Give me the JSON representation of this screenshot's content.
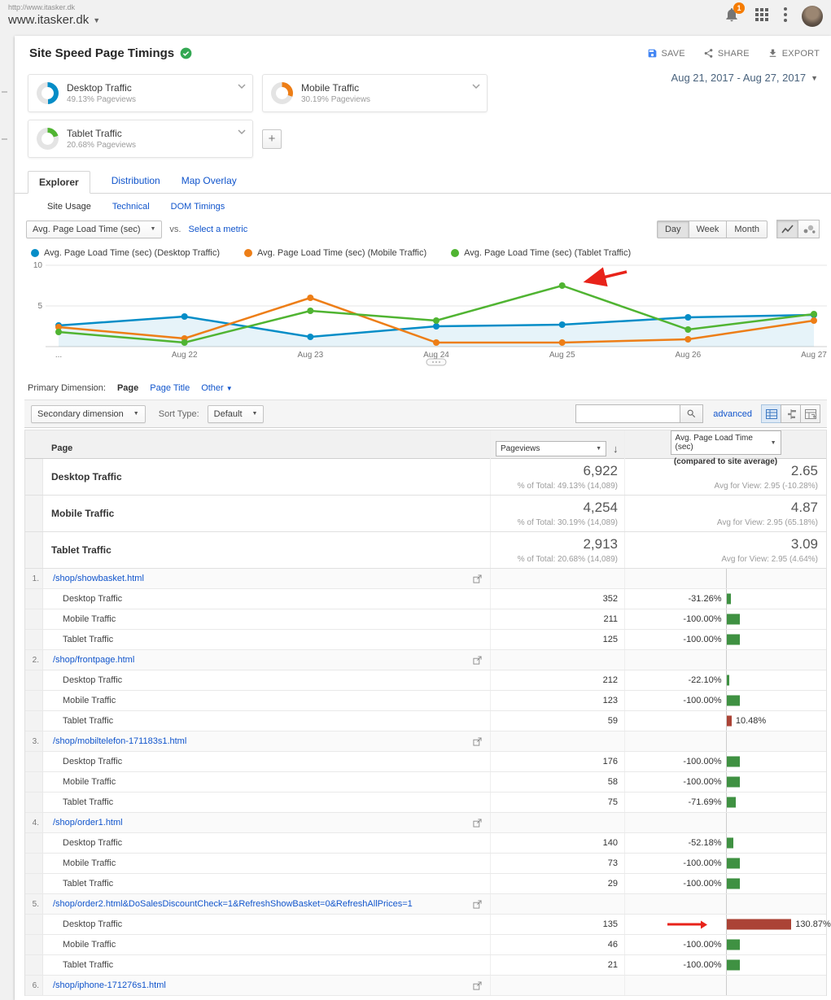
{
  "topbar": {
    "url": "http://www.itasker.dk",
    "account": "www.itasker.dk",
    "notification_count": "1"
  },
  "header": {
    "title": "Site Speed Page Timings",
    "save": "SAVE",
    "share": "SHARE",
    "export": "EXPORT"
  },
  "segments": [
    {
      "name": "Desktop Traffic",
      "detail": "49.13% Pageviews",
      "pct": 49.13,
      "color": "#058dc7"
    },
    {
      "name": "Mobile Traffic",
      "detail": "30.19% Pageviews",
      "pct": 30.19,
      "color": "#ed7e17"
    },
    {
      "name": "Tablet Traffic",
      "detail": "20.68% Pageviews",
      "pct": 20.68,
      "color": "#50b432"
    }
  ],
  "date_range": "Aug 21, 2017 - Aug 27, 2017",
  "tabs": {
    "active": "Explorer",
    "links": [
      "Distribution",
      "Map Overlay"
    ]
  },
  "subtabs": {
    "active": "Site Usage",
    "links": [
      "Technical",
      "DOM Timings"
    ]
  },
  "metric_bar": {
    "metric": "Avg. Page Load Time (sec)",
    "vs": "vs.",
    "select_metric": "Select a metric",
    "granularity": [
      "Day",
      "Week",
      "Month"
    ],
    "active_granularity": "Day"
  },
  "chart_data": {
    "type": "line",
    "x": [
      "...",
      "Aug 22",
      "Aug 23",
      "Aug 24",
      "Aug 25",
      "Aug 26",
      "Aug 27"
    ],
    "series": [
      {
        "name": "Avg. Page Load Time (sec) (Desktop Traffic)",
        "color": "#058dc7",
        "area": true,
        "values": [
          2.6,
          3.7,
          1.2,
          2.5,
          2.7,
          3.6,
          3.9
        ]
      },
      {
        "name": "Avg. Page Load Time (sec) (Mobile Traffic)",
        "color": "#ed7e17",
        "values": [
          2.4,
          1.0,
          6.0,
          0.5,
          0.5,
          0.9,
          3.2
        ]
      },
      {
        "name": "Avg. Page Load Time (sec) (Tablet Traffic)",
        "color": "#50b432",
        "values": [
          1.8,
          0.5,
          4.4,
          3.2,
          7.5,
          2.1,
          4.0
        ]
      }
    ],
    "ylim": [
      0,
      10
    ],
    "yticks": [
      5,
      10
    ],
    "legend_position": "top",
    "grid": true,
    "annotations": [
      {
        "type": "red-arrow",
        "note": "hand-drawn arrow pointing at Tablet Traffic peak on Aug 25"
      }
    ]
  },
  "dimension_bar": {
    "label": "Primary Dimension:",
    "active": "Page",
    "links": [
      "Page Title",
      "Other"
    ]
  },
  "table_toolbar": {
    "secondary_dimension": "Secondary dimension",
    "sort_type_label": "Sort Type:",
    "sort_type_value": "Default",
    "search_value": "",
    "advanced": "advanced"
  },
  "table": {
    "col_page": "Page",
    "col_pageviews": "Pageviews",
    "col_metric": "Avg. Page Load Time (sec)",
    "col_metric_note": "(compared to site average)",
    "summary": [
      {
        "label": "Desktop Traffic",
        "pageviews": "6,922",
        "pageviews_sub": "% of Total: 49.13% (14,089)",
        "metric": "2.65",
        "metric_sub": "Avg for View: 2.95 (-10.28%)"
      },
      {
        "label": "Mobile Traffic",
        "pageviews": "4,254",
        "pageviews_sub": "% of Total: 30.19% (14,089)",
        "metric": "4.87",
        "metric_sub": "Avg for View: 2.95 (65.18%)"
      },
      {
        "label": "Tablet Traffic",
        "pageviews": "2,913",
        "pageviews_sub": "% of Total: 20.68% (14,089)",
        "metric": "3.09",
        "metric_sub": "Avg for View: 2.95 (4.64%)"
      }
    ],
    "rows": [
      {
        "index": "1.",
        "page": "/shop/showbasket.html",
        "segments": [
          {
            "label": "Desktop Traffic",
            "pageviews": "352",
            "delta": "-31.26%"
          },
          {
            "label": "Mobile Traffic",
            "pageviews": "211",
            "delta": "-100.00%"
          },
          {
            "label": "Tablet Traffic",
            "pageviews": "125",
            "delta": "-100.00%"
          }
        ]
      },
      {
        "index": "2.",
        "page": "/shop/frontpage.html",
        "segments": [
          {
            "label": "Desktop Traffic",
            "pageviews": "212",
            "delta": "-22.10%"
          },
          {
            "label": "Mobile Traffic",
            "pageviews": "123",
            "delta": "-100.00%"
          },
          {
            "label": "Tablet Traffic",
            "pageviews": "59",
            "delta": "10.48%"
          }
        ]
      },
      {
        "index": "3.",
        "page": "/shop/mobiltelefon-171183s1.html",
        "segments": [
          {
            "label": "Desktop Traffic",
            "pageviews": "176",
            "delta": "-100.00%"
          },
          {
            "label": "Mobile Traffic",
            "pageviews": "58",
            "delta": "-100.00%"
          },
          {
            "label": "Tablet Traffic",
            "pageviews": "75",
            "delta": "-71.69%"
          }
        ]
      },
      {
        "index": "4.",
        "page": "/shop/order1.html",
        "segments": [
          {
            "label": "Desktop Traffic",
            "pageviews": "140",
            "delta": "-52.18%"
          },
          {
            "label": "Mobile Traffic",
            "pageviews": "73",
            "delta": "-100.00%"
          },
          {
            "label": "Tablet Traffic",
            "pageviews": "29",
            "delta": "-100.00%"
          }
        ]
      },
      {
        "index": "5.",
        "page": "/shop/order2.html&DoSalesDiscountCheck=1&RefreshShowBasket=0&RefreshAllPrices=1",
        "segments": [
          {
            "label": "Desktop Traffic",
            "pageviews": "135",
            "delta": "130.87%",
            "arrow": true
          },
          {
            "label": "Mobile Traffic",
            "pageviews": "46",
            "delta": "-100.00%"
          },
          {
            "label": "Tablet Traffic",
            "pageviews": "21",
            "delta": "-100.00%"
          }
        ]
      },
      {
        "index": "6.",
        "page": "/shop/iphone-171276s1.html",
        "segments": []
      }
    ]
  }
}
